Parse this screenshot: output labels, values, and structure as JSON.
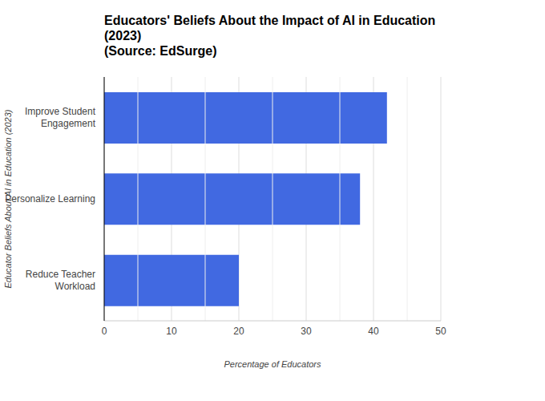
{
  "chart_data": {
    "type": "bar",
    "title": "Educators' Beliefs About the Impact of AI in Education (2023)",
    "subtitle": "(Source: EdSurge)",
    "xlabel": "Percentage of Educators",
    "ylabel": "Educator Beliefs About AI in Education (2023)",
    "orientation": "horizontal",
    "categories": [
      "Improve Student Engagement",
      "Personalize Learning",
      "Reduce Teacher Workload"
    ],
    "values": [
      42,
      38,
      20
    ],
    "color": "#4169e1",
    "xlim": [
      0,
      50
    ],
    "xticks": [
      0,
      10,
      20,
      30,
      40,
      50
    ],
    "grid": true
  }
}
